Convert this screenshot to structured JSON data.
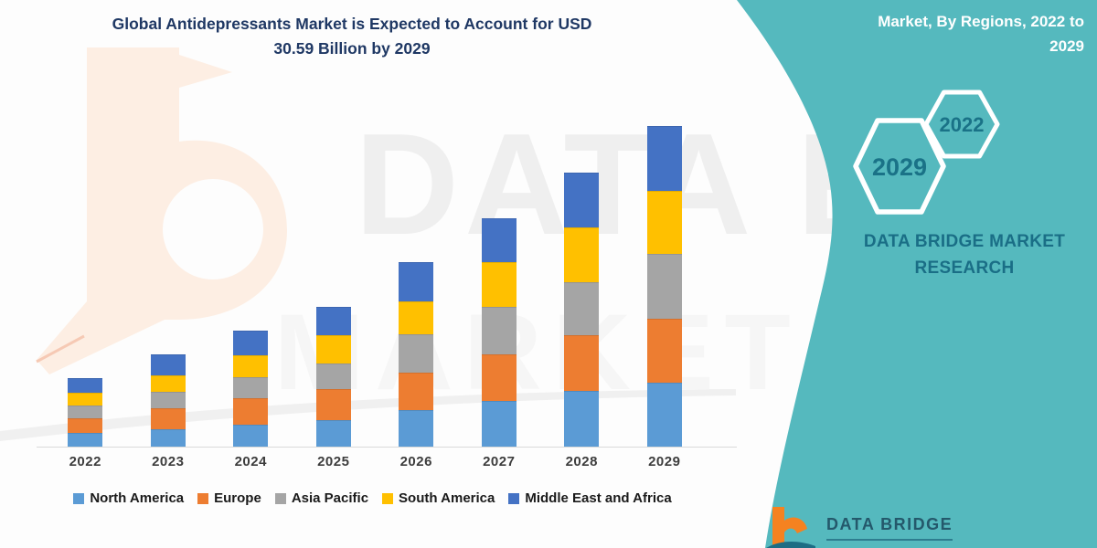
{
  "chart_data": {
    "type": "bar",
    "stacked": true,
    "title": "Global Antidepressants Market is Expected to Account for USD 30.59 Billion by 2029",
    "title_lines": [
      "Global Antidepressants Market is Expected to Account for USD",
      "30.59 Billion by 2029"
    ],
    "unit": "USD Billion (estimated; 2029 total shown as 30.59)",
    "categories": [
      "2022",
      "2023",
      "2024",
      "2025",
      "2026",
      "2027",
      "2028",
      "2029"
    ],
    "series": [
      {
        "name": "North America",
        "color": "#5B9BD5",
        "values": [
          1.3,
          1.7,
          2.1,
          2.5,
          3.5,
          4.4,
          5.3,
          6.1
        ]
      },
      {
        "name": "Europe",
        "color": "#ED7D31",
        "values": [
          1.4,
          2.0,
          2.5,
          3.0,
          3.6,
          4.4,
          5.3,
          6.1
        ]
      },
      {
        "name": "Asia Pacific",
        "color": "#A5A5A5",
        "values": [
          1.2,
          1.5,
          2.0,
          2.4,
          3.6,
          4.5,
          5.1,
          6.2
        ]
      },
      {
        "name": "South America",
        "color": "#FFC000",
        "values": [
          1.2,
          1.6,
          2.1,
          2.7,
          3.2,
          4.3,
          5.2,
          6.0
        ]
      },
      {
        "name": "Middle East and Africa",
        "color": "#4472C4",
        "values": [
          1.4,
          2.0,
          2.4,
          2.7,
          3.7,
          4.2,
          5.3,
          6.2
        ]
      }
    ],
    "totals": [
      6.5,
      8.8,
      11.1,
      13.3,
      17.6,
      21.8,
      26.2,
      30.6
    ],
    "highlight_value": "USD 30.59 Billion",
    "highlight_year": "2029",
    "x_axis_visible": true,
    "y_axis_visible": false,
    "gridlines": false,
    "legend_position": "bottom"
  },
  "watermark": {
    "line1": "DATA BRIDGE",
    "line2": "MARKET RESEARCH"
  },
  "side_panel": {
    "heading_lines": [
      "Market, By Regions, 2022 to",
      "2029"
    ],
    "hex_small": "2022",
    "hex_large": "2029",
    "brand": "DATA BRIDGE MARKET RESEARCH",
    "color": "#55B9BE"
  },
  "footer": {
    "brand": "DATA BRIDGE"
  }
}
